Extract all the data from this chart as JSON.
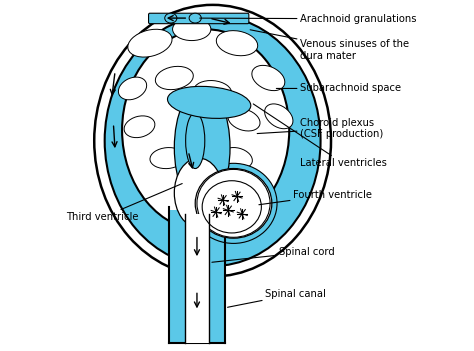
{
  "bg_color": "#ffffff",
  "csf_color": "#5bc8e8",
  "outline_color": "#000000",
  "line_width": 1.5,
  "figsize": [
    4.74,
    3.51
  ],
  "dpi": 100,
  "labels": {
    "arachnoid": "Arachnoid granulations",
    "venous": "Venous sinuses of the\ndura mater",
    "subarachnoid": "Subarachnoid space",
    "choroid": "Choroid plexus\n(CSF production)",
    "lateral": "Lateral ventricles",
    "fourth": "Fourth ventricle",
    "third": "Third ventricle",
    "spinal_cord": "Spinal cord",
    "spinal_canal": "Spinal canal"
  }
}
